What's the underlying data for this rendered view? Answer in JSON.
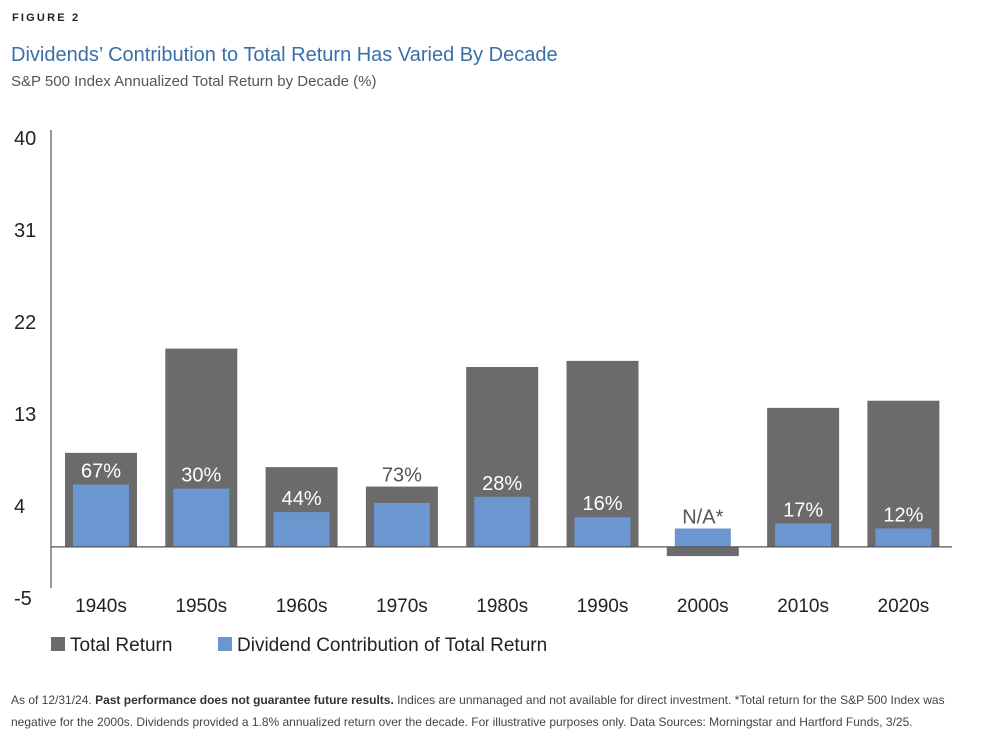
{
  "figure_label": "FIGURE 2",
  "chart_data": {
    "type": "bar",
    "title": "Dividends’ Contribution to Total Return Has Varied By Decade",
    "subtitle": "S&P 500 Index Annualized Total Return by Decade (%)",
    "categories": [
      "1940s",
      "1950s",
      "1960s",
      "1970s",
      "1980s",
      "1990s",
      "2000s",
      "2010s",
      "2020s"
    ],
    "series": [
      {
        "name": "Total Return",
        "color": "#6b6b6b",
        "values": [
          9.2,
          19.4,
          7.8,
          5.9,
          17.6,
          18.2,
          -0.9,
          13.6,
          14.3
        ]
      },
      {
        "name": "Dividend Contribution of Total Return",
        "color": "#6c96cf",
        "values": [
          6.1,
          5.7,
          3.4,
          4.3,
          4.9,
          2.9,
          1.8,
          2.3,
          1.8
        ]
      }
    ],
    "data_labels": [
      "67%",
      "30%",
      "44%",
      "73%",
      "28%",
      "16%",
      "N/A*",
      "17%",
      "12%"
    ],
    "yticks": [
      "40",
      "31",
      "22",
      "13",
      "4",
      "-5"
    ],
    "ylim": [
      -5,
      40
    ],
    "legend_position": "bottom-left",
    "grid": false
  },
  "footer": {
    "lead": "As of 12/31/24. ",
    "bold": "Past performance does not guarantee future results.",
    "rest": " Indices are unmanaged and not available for direct investment. *Total return for the S&P 500 Index was negative for the 2000s. Dividends provided a 1.8% annualized return over the decade. For illustrative purposes only. Data Sources: Morningstar and Hartford Funds, 3/25."
  }
}
